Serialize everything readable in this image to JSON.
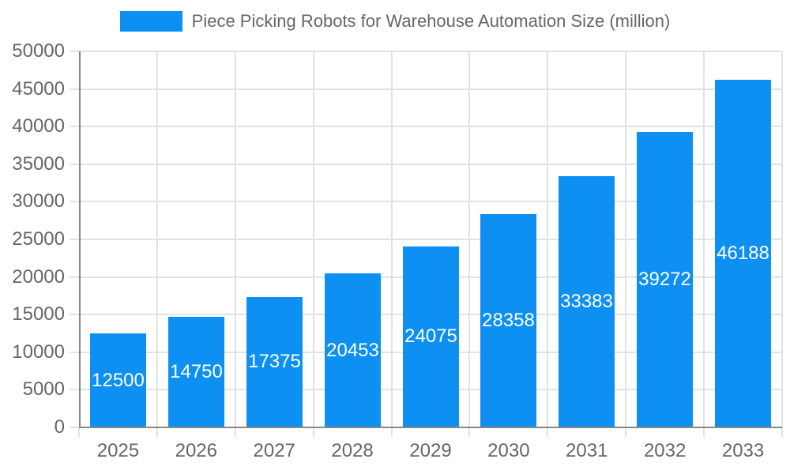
{
  "chart_data": {
    "type": "bar",
    "title": "Piece Picking Robots for Warehouse Automation Size (million)",
    "legend": [
      "Piece Picking Robots for Warehouse Automation Size (million)"
    ],
    "legend_position": "top",
    "categories": [
      "2025",
      "2026",
      "2027",
      "2028",
      "2029",
      "2030",
      "2031",
      "2032",
      "2033"
    ],
    "values": [
      12500,
      14750,
      17375,
      20453,
      24075,
      28358,
      33383,
      39272,
      46188
    ],
    "xlabel": "",
    "ylabel": "",
    "ylim": [
      0,
      50000
    ],
    "yticks": [
      0,
      5000,
      10000,
      15000,
      20000,
      25000,
      30000,
      35000,
      40000,
      45000,
      50000
    ],
    "grid": true,
    "colors": {
      "bar": "#0d90f2",
      "value_text": "#ffffff",
      "axis_text": "#666666",
      "gridline": "#e2e2e2",
      "axis_line": "#888888",
      "background": "#ffffff"
    }
  }
}
